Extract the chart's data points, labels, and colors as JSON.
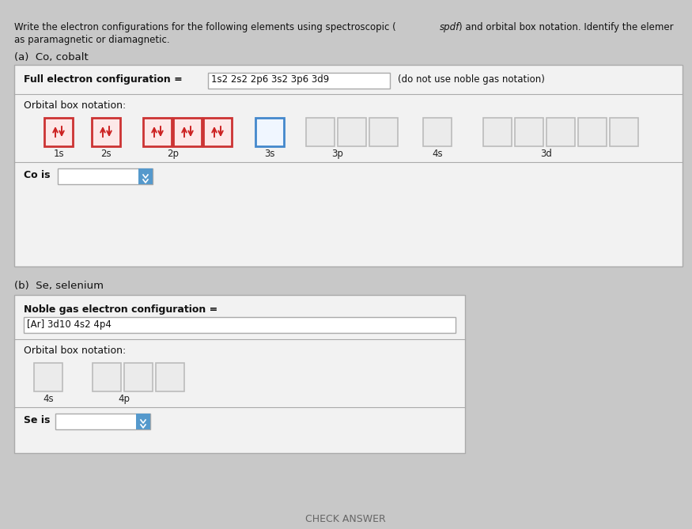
{
  "page_bg": "#c8c8c8",
  "panel_bg": "#f2f2f2",
  "panel_border": "#aaaaaa",
  "title_line1": "Write the electron configurations for the following elements using spectroscopic (",
  "title_spdf": "spdf",
  "title_line1b": ") and orbital box notation. Identify the elemer",
  "title_line2": "as paramagnetic or diamagnetic.",
  "part_a": "(a)  Co, cobalt",
  "part_b": "(b)  Se, selenium",
  "full_config_label": "Full electron configuration =",
  "full_config_value": "1s2 2s2 2p6 3s2 3p6 3d9",
  "full_config_note": "(do not use noble gas notation)",
  "noble_gas_label": "Noble gas electron configuration =",
  "noble_gas_value": "[Ar] 3d10 4s2 4p4",
  "orbital_label": "Orbital box notation:",
  "co_is": "Co is",
  "se_is": "Se is",
  "red_fill": "#fce8e8",
  "red_border": "#cc3333",
  "blue_border": "#4488cc",
  "blue_fill": "#f0f6ff",
  "gray_border": "#bbbbbb",
  "gray_fill": "#ebebeb",
  "arrow_color": "#cc2222",
  "input_box_bg": "#ffffff",
  "input_box_border": "#aaaaaa",
  "dropdown_bg": "#5599cc",
  "text_color": "#111111",
  "sublabel_color": "#222222"
}
